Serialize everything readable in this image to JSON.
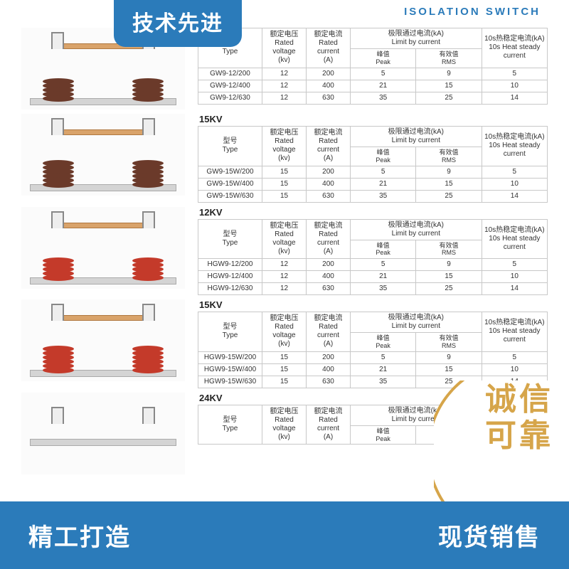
{
  "badges": {
    "top": "技术先进",
    "corner_line1": "诚信",
    "corner_line2": "可靠"
  },
  "header": {
    "right_text": "ISOLATION SWITCH"
  },
  "footer": {
    "left": "精工打造",
    "right": "现货销售"
  },
  "colors": {
    "primary_blue": "#2b7bba",
    "gold": "#d6a54a",
    "insulator_brown": "#6b3a2a",
    "insulator_red": "#c43a2a",
    "border_gray": "#c8c8c8"
  },
  "table_headers": {
    "type": "型号\nType",
    "voltage": "额定电压\nRated voltage\n(kv)",
    "current": "额定电流\nRated current\n(A)",
    "limit_group": "极限通过电流(kA)\nLimit by current",
    "peak": "峰值\nPeak",
    "rms": "有效值\nRMS",
    "heat": "10s热稳定电流(kA)\n10s Heat steady\ncurrent"
  },
  "sections": [
    {
      "kv_label": "",
      "insulator_color": "brown",
      "fin_count": 5,
      "rows": [
        {
          "type": "GW9-12/200",
          "voltage": "12",
          "current": "200",
          "peak": "5",
          "rms": "9",
          "heat": "5"
        },
        {
          "type": "GW9-12/400",
          "voltage": "12",
          "current": "400",
          "peak": "21",
          "rms": "15",
          "heat": "10"
        },
        {
          "type": "GW9-12/630",
          "voltage": "12",
          "current": "630",
          "peak": "35",
          "rms": "25",
          "heat": "14"
        }
      ]
    },
    {
      "kv_label": "15KV",
      "insulator_color": "brown",
      "fin_count": 6,
      "rows": [
        {
          "type": "GW9-15W/200",
          "voltage": "15",
          "current": "200",
          "peak": "5",
          "rms": "9",
          "heat": "5"
        },
        {
          "type": "GW9-15W/400",
          "voltage": "15",
          "current": "400",
          "peak": "21",
          "rms": "15",
          "heat": "10"
        },
        {
          "type": "GW9-15W/630",
          "voltage": "15",
          "current": "630",
          "peak": "35",
          "rms": "25",
          "heat": "14"
        }
      ]
    },
    {
      "kv_label": "12KV",
      "insulator_color": "red",
      "fin_count": 5,
      "rows": [
        {
          "type": "HGW9-12/200",
          "voltage": "12",
          "current": "200",
          "peak": "5",
          "rms": "9",
          "heat": "5"
        },
        {
          "type": "HGW9-12/400",
          "voltage": "12",
          "current": "400",
          "peak": "21",
          "rms": "15",
          "heat": "10"
        },
        {
          "type": "HGW9-12/630",
          "voltage": "12",
          "current": "630",
          "peak": "35",
          "rms": "25",
          "heat": "14"
        }
      ]
    },
    {
      "kv_label": "15KV",
      "insulator_color": "red",
      "fin_count": 6,
      "rows": [
        {
          "type": "HGW9-15W/200",
          "voltage": "15",
          "current": "200",
          "peak": "5",
          "rms": "9",
          "heat": "5"
        },
        {
          "type": "HGW9-15W/400",
          "voltage": "15",
          "current": "400",
          "peak": "21",
          "rms": "15",
          "heat": "10"
        },
        {
          "type": "HGW9-15W/630",
          "voltage": "15",
          "current": "630",
          "peak": "35",
          "rms": "25",
          "heat": "14"
        }
      ]
    },
    {
      "kv_label": "24KV",
      "insulator_color": "none",
      "fin_count": 0,
      "rows": []
    }
  ]
}
